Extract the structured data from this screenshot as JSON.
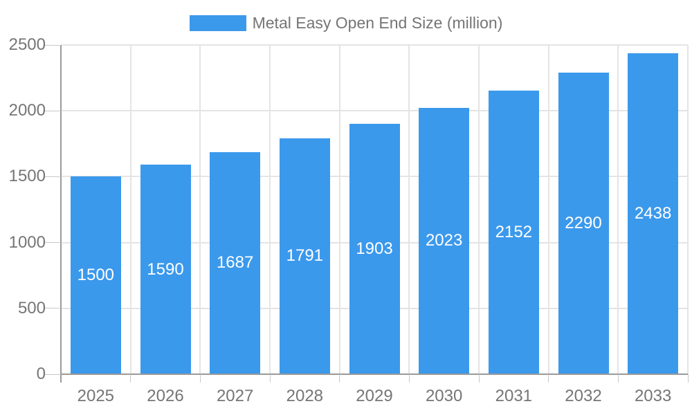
{
  "chart_data": {
    "type": "bar",
    "title": "Metal Easy Open End Size (million)",
    "categories": [
      "2025",
      "2026",
      "2027",
      "2028",
      "2029",
      "2030",
      "2031",
      "2032",
      "2033"
    ],
    "values": [
      1500,
      1590,
      1687,
      1791,
      1903,
      2023,
      2152,
      2290,
      2438
    ],
    "xlabel": "",
    "ylabel": "",
    "ylim": [
      0,
      2500
    ],
    "yticks": [
      0,
      500,
      1000,
      1500,
      2000,
      2500
    ],
    "grid": true,
    "legend_position": "top",
    "value_label_style": "inside-center-white",
    "colors": {
      "bar": "#3B99EC",
      "axis": "#999999",
      "gridline": "#E4E4E4",
      "tick": "#C8C8C8",
      "label_text": "#757575",
      "value_text": "#FFFFFF",
      "background": "#FFFFFF"
    }
  }
}
